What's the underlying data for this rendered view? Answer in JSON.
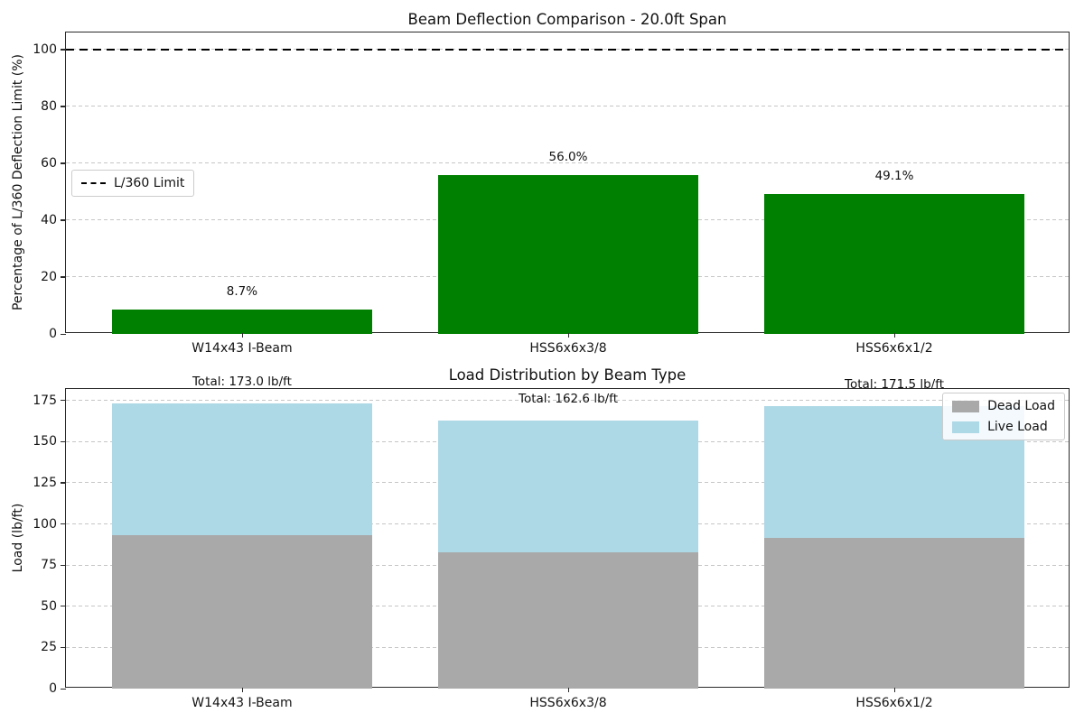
{
  "figure": {
    "background": "#ffffff"
  },
  "chart_data": [
    {
      "type": "bar",
      "title": "Beam Deflection Comparison - 20.0ft Span",
      "ylabel": "Percentage of L/360 Deflection Limit (%)",
      "xlabel": "",
      "categories": [
        "W14x43 I-Beam",
        "HSS6x6x3/8",
        "HSS6x6x1/2"
      ],
      "values": [
        8.7,
        56.0,
        49.1
      ],
      "bar_labels": [
        "8.7%",
        "56.0%",
        "49.1%"
      ],
      "bar_color": "#008000",
      "yticks": [
        0,
        20,
        40,
        60,
        80,
        100
      ],
      "ylim": [
        0,
        106
      ],
      "grid": "dashed-horizontal",
      "ref_line": {
        "value": 100,
        "style": "dashed",
        "color": "#000000",
        "label": "L/360 Limit"
      },
      "legend": {
        "position": "center-left",
        "entries": [
          {
            "label": "L/360 Limit",
            "marker": "dashed-line",
            "color": "#000000"
          }
        ]
      }
    },
    {
      "type": "stacked-bar",
      "title": "Load Distribution by Beam Type",
      "ylabel": "Load (lb/ft)",
      "xlabel": "",
      "categories": [
        "W14x43 I-Beam",
        "HSS6x6x3/8",
        "HSS6x6x1/2"
      ],
      "series": [
        {
          "name": "Dead Load",
          "color": "#a9a9a9",
          "values": [
            93.0,
            82.6,
            91.5
          ]
        },
        {
          "name": "Live Load",
          "color": "#add8e6",
          "values": [
            80.0,
            80.0,
            80.0
          ]
        }
      ],
      "totals": [
        173.0,
        162.6,
        171.5
      ],
      "total_labels": [
        "Total: 173.0 lb/ft",
        "Total: 162.6 lb/ft",
        "Total: 171.5 lb/ft"
      ],
      "yticks": [
        0,
        25,
        50,
        75,
        100,
        125,
        150,
        175
      ],
      "ylim": [
        0,
        182
      ],
      "grid": "dashed-horizontal",
      "legend": {
        "position": "top-right",
        "entries": [
          {
            "label": "Dead Load",
            "marker": "patch",
            "color": "#a9a9a9"
          },
          {
            "label": "Live Load",
            "marker": "patch",
            "color": "#add8e6"
          }
        ]
      }
    }
  ]
}
